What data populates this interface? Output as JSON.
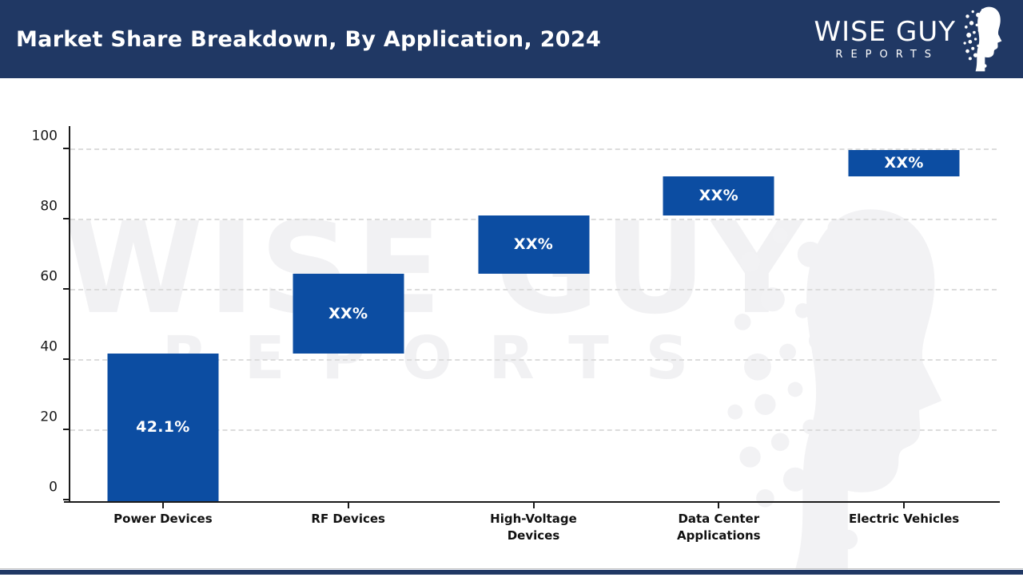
{
  "header": {
    "title": "Market Share Breakdown, By Application, 2024",
    "logo": {
      "line1": "WISE GUY",
      "line2": "REPORTS"
    }
  },
  "watermark": {
    "line1": "WISE GUY",
    "line2": "REPORTS"
  },
  "colors": {
    "header_bg": "#203864",
    "footer_bg": "#203864",
    "bar": "#0c4da2",
    "bar_label": "#ffffff",
    "gridline": "#dcdcdc",
    "axis": "#1a1a1a",
    "watermark": "#f1f1f3"
  },
  "chart_data": {
    "type": "bar",
    "subtype": "waterfall",
    "title": "Market Share Breakdown, By Application, 2024",
    "xlabel": "",
    "ylabel": "",
    "ylim": [
      0,
      104
    ],
    "yticks": [
      0,
      20,
      40,
      60,
      80,
      100
    ],
    "grid": "horizontal-dashed",
    "legend": "none",
    "categories": [
      "Power Devices",
      "RF Devices",
      "High-Voltage Devices",
      "Data Center Applications",
      "Electric Vehicles"
    ],
    "segments": [
      {
        "label": "Power Devices",
        "label_lines": [
          "Power Devices"
        ],
        "start": 0,
        "end": 42.1,
        "value_label": "42.1%"
      },
      {
        "label": "RF Devices",
        "label_lines": [
          "RF Devices"
        ],
        "start": 42.1,
        "end": 64.7,
        "value_label": "XX%"
      },
      {
        "label": "High-Voltage Devices",
        "label_lines": [
          "High-Voltage",
          "Devices"
        ],
        "start": 64.7,
        "end": 81.4,
        "value_label": "XX%"
      },
      {
        "label": "Data Center Applications",
        "label_lines": [
          "Data Center",
          "Applications"
        ],
        "start": 81.4,
        "end": 92.5,
        "value_label": "XX%"
      },
      {
        "label": "Electric Vehicles",
        "label_lines": [
          "Electric Vehicles"
        ],
        "start": 92.5,
        "end": 100,
        "value_label": "XX%"
      }
    ]
  }
}
